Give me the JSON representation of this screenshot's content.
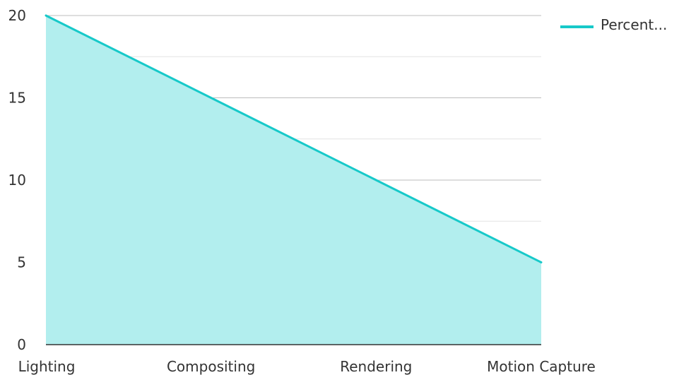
{
  "chart_data": {
    "type": "area",
    "categories": [
      "Lighting",
      "Compositing",
      "Rendering",
      "Motion Capture"
    ],
    "series": [
      {
        "name": "Percent...",
        "values": [
          20,
          15,
          10,
          5
        ],
        "color": "#17c9c9",
        "fill": "#b2eeee"
      }
    ],
    "ylim": [
      0,
      20
    ],
    "yticks": [
      0,
      5,
      10,
      15,
      20
    ],
    "grid": true,
    "legend_position": "top-right",
    "title": "",
    "xlabel": "",
    "ylabel": ""
  }
}
